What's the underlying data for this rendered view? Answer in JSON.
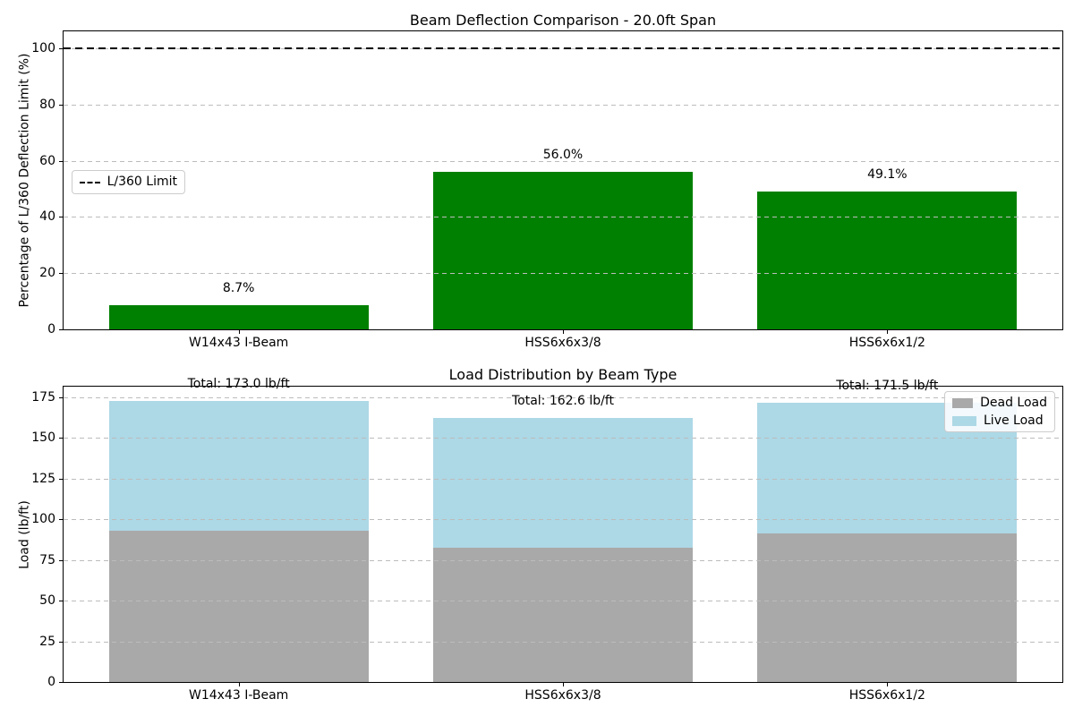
{
  "figure": {
    "background": "#ffffff"
  },
  "chart_data": [
    {
      "type": "bar",
      "title": "Beam Deflection Comparison - 20.0ft Span",
      "ylabel": "Percentage of L/360 Deflection Limit (%)",
      "xlabel": "",
      "categories": [
        "W14x43 I-Beam",
        "HSS6x6x3/8",
        "HSS6x6x1/2"
      ],
      "values": [
        8.7,
        56.0,
        49.1
      ],
      "bar_labels": [
        "8.7%",
        "56.0%",
        "49.1%"
      ],
      "bar_color": "#008000",
      "ylim": [
        0,
        106
      ],
      "yticks": [
        0,
        20,
        40,
        60,
        80,
        100
      ],
      "grid": true,
      "reference_line": {
        "value": 100,
        "label": "L/360 Limit",
        "color": "#000000",
        "linestyle": "dashed"
      },
      "legend": {
        "position": "center-left",
        "entries": [
          {
            "label": "L/360 Limit",
            "swatch": "dashed-line",
            "color": "#000000"
          }
        ]
      }
    },
    {
      "type": "bar",
      "stacked": true,
      "title": "Load Distribution by Beam Type",
      "ylabel": "Load (lb/ft)",
      "xlabel": "",
      "categories": [
        "W14x43 I-Beam",
        "HSS6x6x3/8",
        "HSS6x6x1/2"
      ],
      "series": [
        {
          "name": "Dead Load",
          "color": "#a9a9a9",
          "values": [
            93.0,
            82.6,
            91.5
          ]
        },
        {
          "name": "Live Load",
          "color": "#add8e6",
          "values": [
            80.0,
            80.0,
            80.0
          ]
        }
      ],
      "totals": [
        173.0,
        162.6,
        171.5
      ],
      "total_labels": [
        "Total: 173.0 lb/ft",
        "Total: 162.6 lb/ft",
        "Total: 171.5 lb/ft"
      ],
      "ylim": [
        0,
        181.6
      ],
      "yticks": [
        0,
        25,
        50,
        75,
        100,
        125,
        150,
        175
      ],
      "grid": true,
      "legend": {
        "position": "upper-right",
        "entries": [
          {
            "label": "Dead Load",
            "swatch": "rect",
            "color": "#a9a9a9"
          },
          {
            "label": "Live Load",
            "swatch": "rect",
            "color": "#add8e6"
          }
        ]
      }
    }
  ]
}
